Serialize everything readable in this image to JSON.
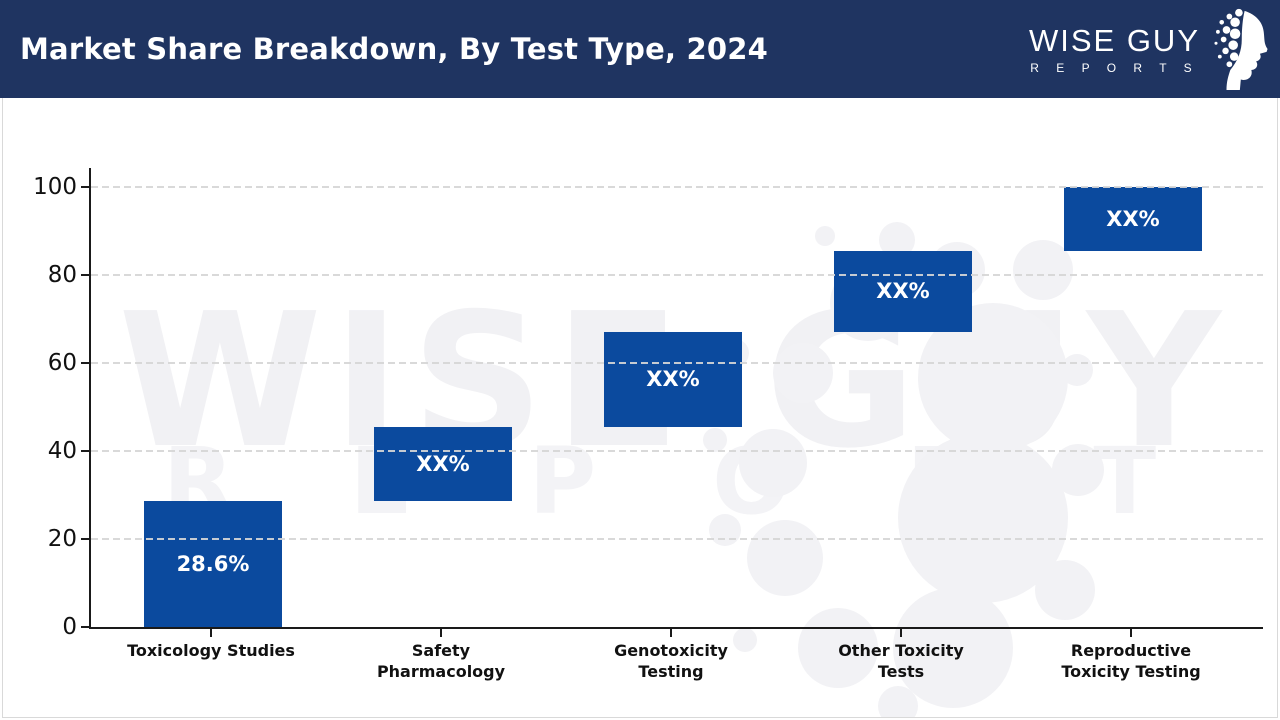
{
  "header": {
    "title": "Market Share Breakdown, By Test Type, 2024",
    "logo": {
      "line1": "WISE GUY",
      "line2": "R E P O R T S"
    }
  },
  "watermark": {
    "line1": "WISE GUY",
    "line2": "R E P O R T S"
  },
  "chart_data": {
    "type": "bar",
    "subtype": "waterfall",
    "title": "Market Share Breakdown, By Test Type, 2024",
    "categories": [
      "Toxicology Studies",
      "Safety Pharmacology",
      "Genotoxicity Testing",
      "Other Toxicity Tests",
      "Reproductive Toxicity Testing"
    ],
    "category_lines": [
      [
        "Toxicology Studies"
      ],
      [
        "Safety",
        "Pharmacology"
      ],
      [
        "Genotoxicity",
        "Testing"
      ],
      [
        "Other Toxicity",
        "Tests"
      ],
      [
        "Reproductive",
        "Toxicity Testing"
      ]
    ],
    "segments": [
      {
        "category": "Toxicology Studies",
        "label": "28.6%",
        "start": 0,
        "end": 28.6
      },
      {
        "category": "Safety Pharmacology",
        "label": "XX%",
        "start": 28.6,
        "end": 45.5
      },
      {
        "category": "Genotoxicity Testing",
        "label": "XX%",
        "start": 45.5,
        "end": 67.0
      },
      {
        "category": "Other Toxicity Tests",
        "label": "XX%",
        "start": 67.0,
        "end": 85.4
      },
      {
        "category": "Reproductive Toxicity Testing",
        "label": "XX%",
        "start": 85.4,
        "end": 100.0
      }
    ],
    "yticks": [
      0,
      20,
      40,
      60,
      80,
      100
    ],
    "ylim": [
      0,
      104.2
    ],
    "xlabel": "",
    "ylabel": "",
    "grid": "horizontal-dashed",
    "legend": "none"
  },
  "colors": {
    "header_bg": "#1f3461",
    "bar": "#0b4a9e",
    "bar_label": "#ffffff",
    "grid": "#d6d6d6",
    "axis": "#1a1a1a",
    "watermark": "#f1f1f4",
    "card_border": "#d9d9d9"
  }
}
